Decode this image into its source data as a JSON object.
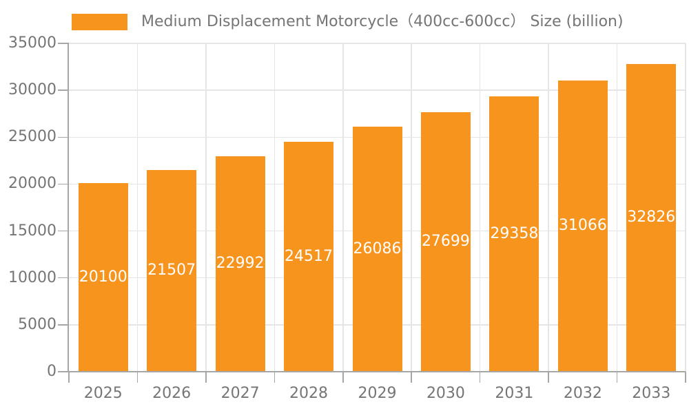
{
  "colors": {
    "bg": "#FFFFFF",
    "bar": "#F7941E",
    "axisline": "#A6A6A6",
    "grid": "#E5E5E5",
    "axis-text": "#757575",
    "bar-label": "#FFFFFF"
  },
  "legend": {
    "label": "Medium Displacement Motorcycle（400cc-600cc） Size (billion)"
  },
  "chart_data": {
    "type": "bar",
    "title": "Medium Displacement Motorcycle（400cc-600cc） Size (billion)",
    "series": [
      {
        "name": "Medium Displacement Motorcycle（400cc-600cc） Size (billion)",
        "values": [
          20100,
          21507,
          22992,
          24517,
          26086,
          27699,
          29358,
          31066,
          32826
        ]
      }
    ],
    "categories": [
      "2025",
      "2026",
      "2027",
      "2028",
      "2029",
      "2030",
      "2031",
      "2032",
      "2033"
    ],
    "value_labels": [
      "20100",
      "21507",
      "22992",
      "24517",
      "26086",
      "27699",
      "29358",
      "31066",
      "32826"
    ],
    "value_label_position": "inside-center",
    "xlabel": "",
    "ylabel": "",
    "ylim": [
      0,
      35000
    ],
    "yticks": [
      0,
      5000,
      10000,
      15000,
      20000,
      25000,
      30000,
      35000
    ],
    "grid": true,
    "legend_position": "top-left"
  }
}
